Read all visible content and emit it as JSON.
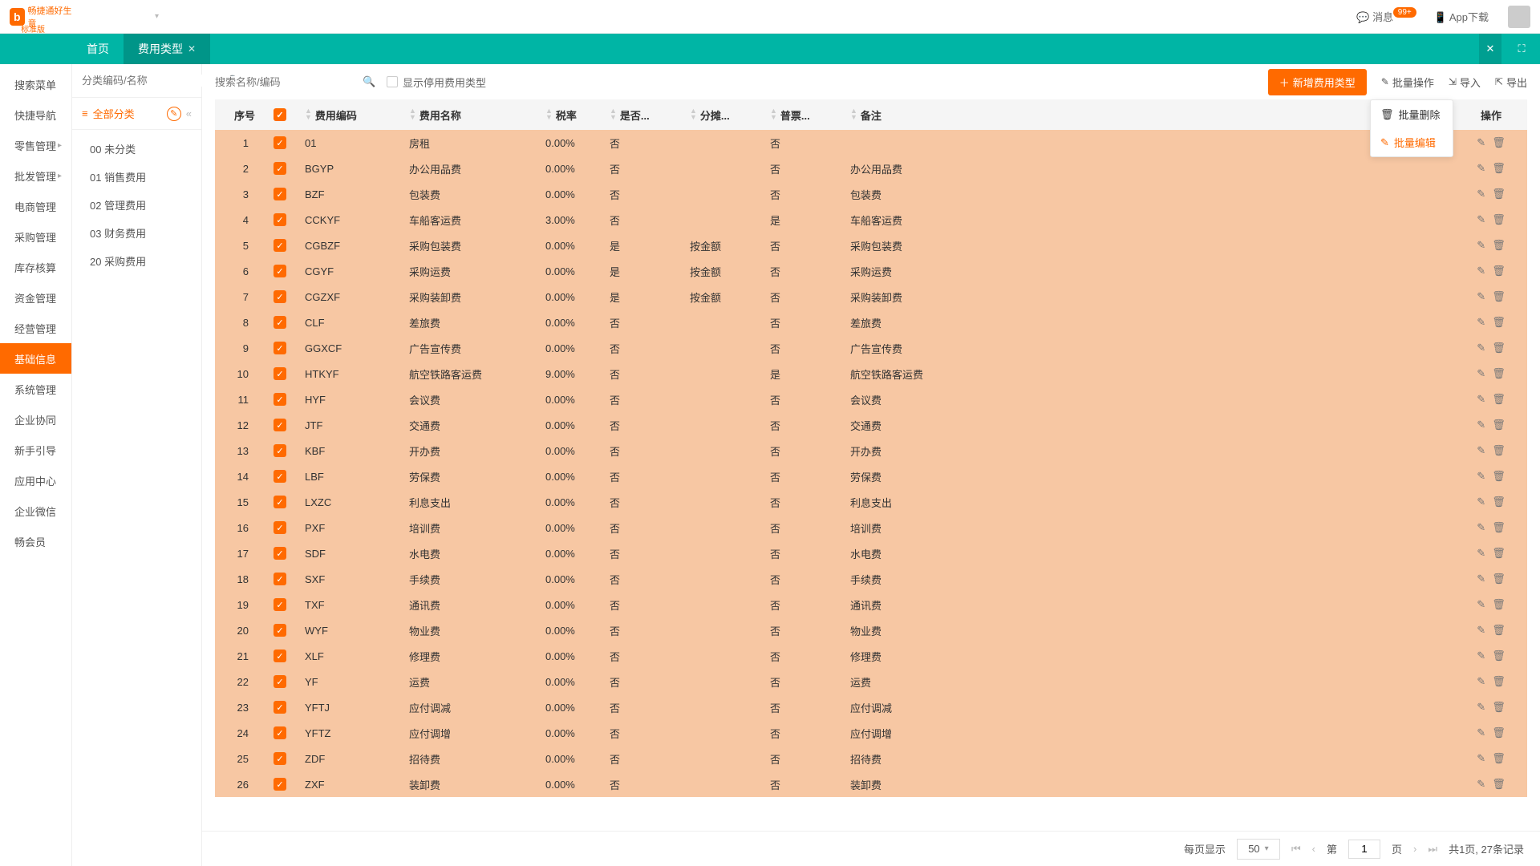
{
  "logo": {
    "brand": "畅捷通好生意",
    "edition": "标准版"
  },
  "topbar": {
    "messages_label": "消息",
    "badge": "99+",
    "download_label": "App下载"
  },
  "tabs": {
    "home": "首页",
    "current": "费用类型"
  },
  "sidebar": [
    {
      "label": "搜索菜单",
      "caret": false
    },
    {
      "label": "快捷导航",
      "caret": false
    },
    {
      "label": "零售管理",
      "caret": true
    },
    {
      "label": "批发管理",
      "caret": true
    },
    {
      "label": "电商管理",
      "caret": false
    },
    {
      "label": "采购管理",
      "caret": false
    },
    {
      "label": "库存核算",
      "caret": false
    },
    {
      "label": "资金管理",
      "caret": false
    },
    {
      "label": "经营管理",
      "caret": false
    },
    {
      "label": "基础信息",
      "caret": false,
      "active": true
    },
    {
      "label": "系统管理",
      "caret": false
    },
    {
      "label": "企业协同",
      "caret": false
    },
    {
      "label": "新手引导",
      "caret": false
    },
    {
      "label": "应用中心",
      "caret": false
    },
    {
      "label": "企业微信",
      "caret": false
    },
    {
      "label": "畅会员",
      "caret": false
    }
  ],
  "category": {
    "search_placeholder": "分类编码/名称",
    "all_label": "全部分类",
    "items": [
      "00 未分类",
      "01 销售费用",
      "02 管理费用",
      "03 财务费用",
      "20 采购费用"
    ]
  },
  "toolbar": {
    "search_placeholder": "搜索名称/编码",
    "show_disabled_label": "显示停用费用类型",
    "add_btn": "新增费用类型",
    "batch_label": "批量操作",
    "import_label": "导入",
    "export_label": "导出"
  },
  "popup": {
    "delete": "批量删除",
    "edit": "批量编辑"
  },
  "columns": {
    "idx": "序号",
    "code": "费用编码",
    "name": "费用名称",
    "rate": "税率",
    "is1": "是否...",
    "alloc": "分摊...",
    "bill": "普票...",
    "remark": "备注",
    "ops": "操作"
  },
  "rows": [
    {
      "i": "1",
      "code": "01",
      "name": "房租",
      "rate": "0.00%",
      "a": "否",
      "b": "",
      "c": "否",
      "r": ""
    },
    {
      "i": "2",
      "code": "BGYP",
      "name": "办公用品费",
      "rate": "0.00%",
      "a": "否",
      "b": "",
      "c": "否",
      "r": "办公用品费"
    },
    {
      "i": "3",
      "code": "BZF",
      "name": "包装费",
      "rate": "0.00%",
      "a": "否",
      "b": "",
      "c": "否",
      "r": "包装费"
    },
    {
      "i": "4",
      "code": "CCKYF",
      "name": "车船客运费",
      "rate": "3.00%",
      "a": "否",
      "b": "",
      "c": "是",
      "r": "车船客运费"
    },
    {
      "i": "5",
      "code": "CGBZF",
      "name": "采购包装费",
      "rate": "0.00%",
      "a": "是",
      "b": "按金额",
      "c": "否",
      "r": "采购包装费"
    },
    {
      "i": "6",
      "code": "CGYF",
      "name": "采购运费",
      "rate": "0.00%",
      "a": "是",
      "b": "按金额",
      "c": "否",
      "r": "采购运费"
    },
    {
      "i": "7",
      "code": "CGZXF",
      "name": "采购装卸费",
      "rate": "0.00%",
      "a": "是",
      "b": "按金额",
      "c": "否",
      "r": "采购装卸费"
    },
    {
      "i": "8",
      "code": "CLF",
      "name": "差旅费",
      "rate": "0.00%",
      "a": "否",
      "b": "",
      "c": "否",
      "r": "差旅费"
    },
    {
      "i": "9",
      "code": "GGXCF",
      "name": "广告宣传费",
      "rate": "0.00%",
      "a": "否",
      "b": "",
      "c": "否",
      "r": "广告宣传费"
    },
    {
      "i": "10",
      "code": "HTKYF",
      "name": "航空铁路客运费",
      "rate": "9.00%",
      "a": "否",
      "b": "",
      "c": "是",
      "r": "航空铁路客运费"
    },
    {
      "i": "11",
      "code": "HYF",
      "name": "会议费",
      "rate": "0.00%",
      "a": "否",
      "b": "",
      "c": "否",
      "r": "会议费"
    },
    {
      "i": "12",
      "code": "JTF",
      "name": "交通费",
      "rate": "0.00%",
      "a": "否",
      "b": "",
      "c": "否",
      "r": "交通费"
    },
    {
      "i": "13",
      "code": "KBF",
      "name": "开办费",
      "rate": "0.00%",
      "a": "否",
      "b": "",
      "c": "否",
      "r": "开办费"
    },
    {
      "i": "14",
      "code": "LBF",
      "name": "劳保费",
      "rate": "0.00%",
      "a": "否",
      "b": "",
      "c": "否",
      "r": "劳保费"
    },
    {
      "i": "15",
      "code": "LXZC",
      "name": "利息支出",
      "rate": "0.00%",
      "a": "否",
      "b": "",
      "c": "否",
      "r": "利息支出"
    },
    {
      "i": "16",
      "code": "PXF",
      "name": "培训费",
      "rate": "0.00%",
      "a": "否",
      "b": "",
      "c": "否",
      "r": "培训费"
    },
    {
      "i": "17",
      "code": "SDF",
      "name": "水电费",
      "rate": "0.00%",
      "a": "否",
      "b": "",
      "c": "否",
      "r": "水电费"
    },
    {
      "i": "18",
      "code": "SXF",
      "name": "手续费",
      "rate": "0.00%",
      "a": "否",
      "b": "",
      "c": "否",
      "r": "手续费"
    },
    {
      "i": "19",
      "code": "TXF",
      "name": "通讯费",
      "rate": "0.00%",
      "a": "否",
      "b": "",
      "c": "否",
      "r": "通讯费"
    },
    {
      "i": "20",
      "code": "WYF",
      "name": "物业费",
      "rate": "0.00%",
      "a": "否",
      "b": "",
      "c": "否",
      "r": "物业费"
    },
    {
      "i": "21",
      "code": "XLF",
      "name": "修理费",
      "rate": "0.00%",
      "a": "否",
      "b": "",
      "c": "否",
      "r": "修理费"
    },
    {
      "i": "22",
      "code": "YF",
      "name": "运费",
      "rate": "0.00%",
      "a": "否",
      "b": "",
      "c": "否",
      "r": "运费"
    },
    {
      "i": "23",
      "code": "YFTJ",
      "name": "应付调减",
      "rate": "0.00%",
      "a": "否",
      "b": "",
      "c": "否",
      "r": "应付调减"
    },
    {
      "i": "24",
      "code": "YFTZ",
      "name": "应付调增",
      "rate": "0.00%",
      "a": "否",
      "b": "",
      "c": "否",
      "r": "应付调增"
    },
    {
      "i": "25",
      "code": "ZDF",
      "name": "招待费",
      "rate": "0.00%",
      "a": "否",
      "b": "",
      "c": "否",
      "r": "招待费"
    },
    {
      "i": "26",
      "code": "ZXF",
      "name": "装卸费",
      "rate": "0.00%",
      "a": "否",
      "b": "",
      "c": "否",
      "r": "装卸费"
    }
  ],
  "footer": {
    "per_page_label": "每页显示",
    "page_size": "50",
    "page_prefix": "第",
    "page_num": "1",
    "page_suffix": "页",
    "summary": "共1页, 27条记录"
  },
  "colors": {
    "primary": "#ff6a00",
    "teal": "#00b5a5",
    "teal_dark": "#009588",
    "row_bg": "#f7c7a3",
    "header_bg": "#f5f5f5"
  }
}
